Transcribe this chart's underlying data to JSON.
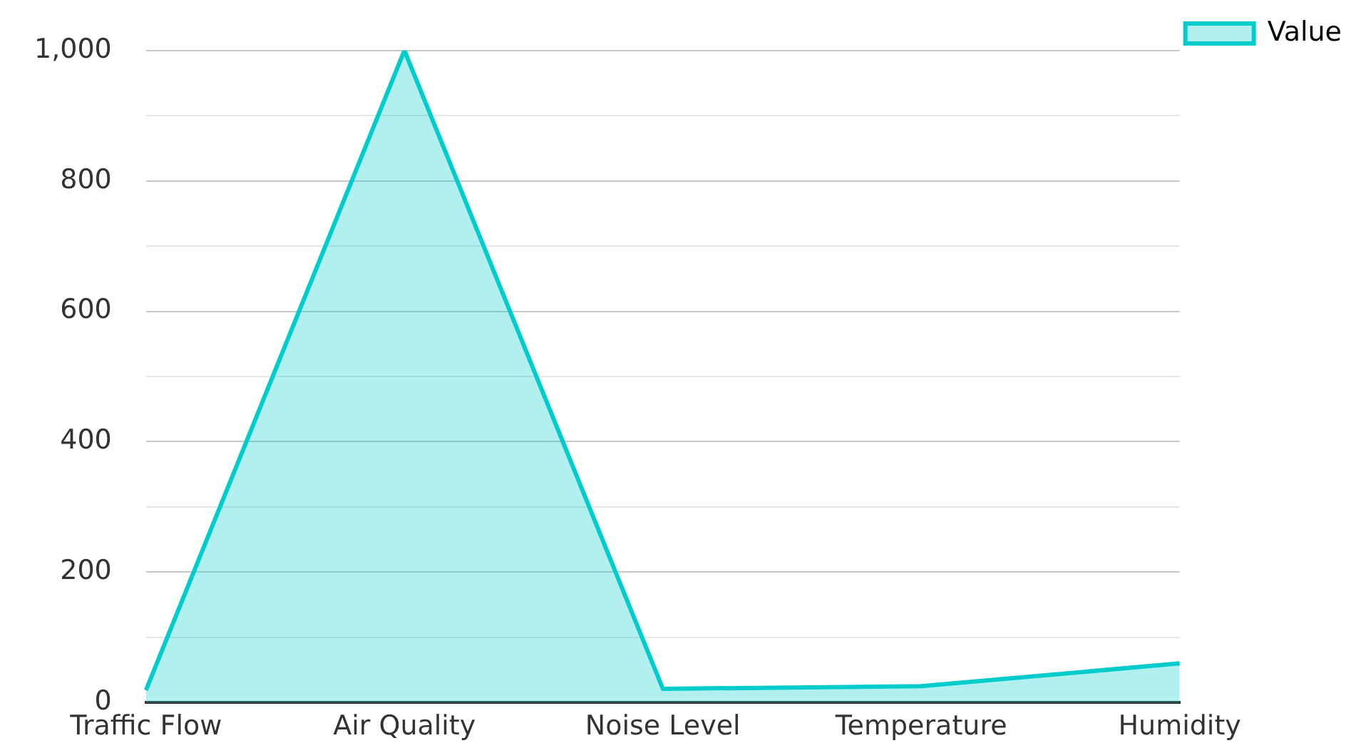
{
  "chart_data": {
    "type": "area",
    "categories": [
      "Traffic Flow",
      "Air Quality",
      "Noise Level",
      "Temperature",
      "Humidity"
    ],
    "series": [
      {
        "name": "Value",
        "color": "#00cccc",
        "values": [
          19,
          1000,
          21,
          25,
          60
        ]
      }
    ],
    "ylim": [
      0,
      1000
    ],
    "yticks": [
      0,
      {
        "value": 100,
        "label": null
      },
      200,
      {
        "value": 300,
        "label": null
      },
      400,
      {
        "value": 500,
        "label": null
      },
      600,
      {
        "value": 700,
        "label": null
      },
      800,
      {
        "value": 900,
        "label": null
      },
      {
        "value": 1000,
        "label": "1,000"
      }
    ],
    "grid": "y",
    "legend": "top right",
    "marker": "none"
  }
}
